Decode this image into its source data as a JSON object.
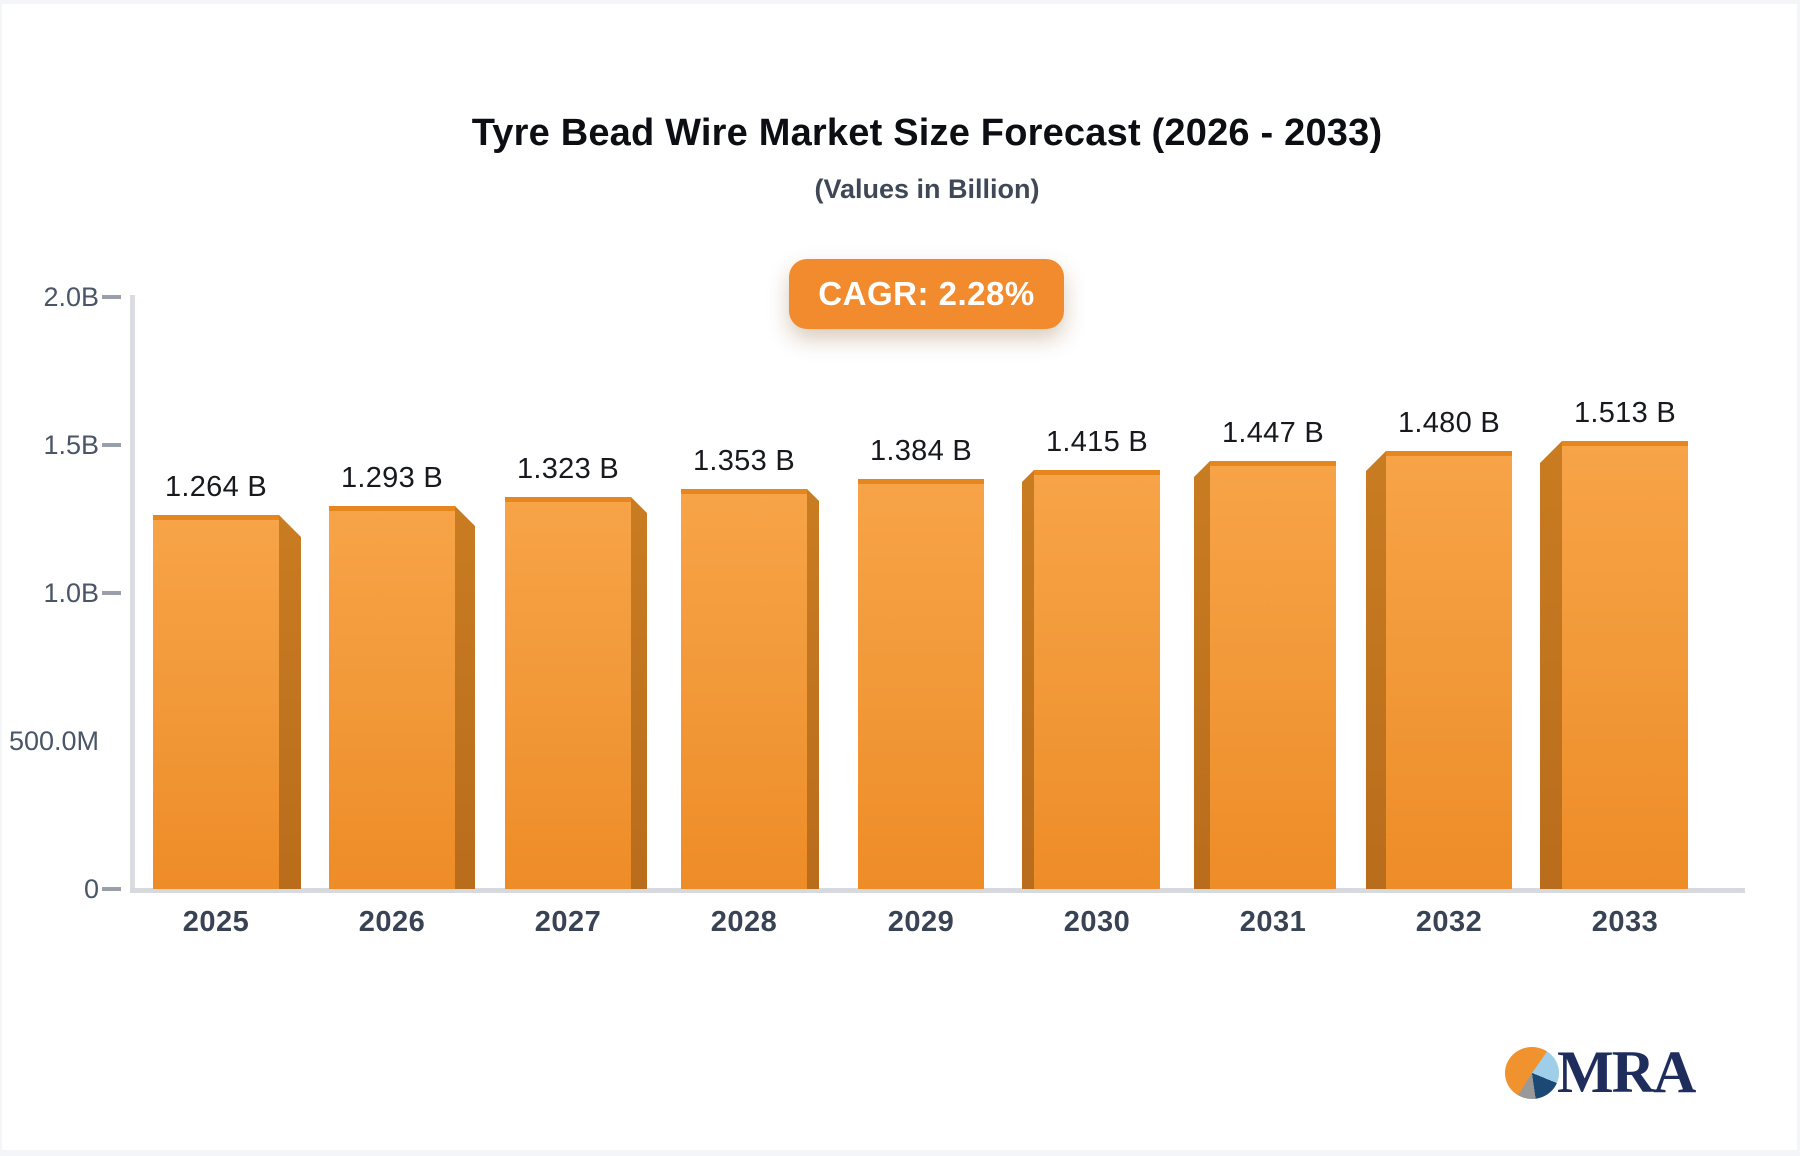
{
  "chart_data": {
    "type": "bar",
    "title": "Tyre Bead Wire Market Size Forecast (2026 - 2033)",
    "subtitle": "(Values in Billion)",
    "cagr_label": "CAGR: 2.28%",
    "categories": [
      "2025",
      "2026",
      "2027",
      "2028",
      "2029",
      "2030",
      "2031",
      "2032",
      "2033"
    ],
    "values": [
      1.264,
      1.293,
      1.323,
      1.353,
      1.384,
      1.415,
      1.447,
      1.48,
      1.513
    ],
    "value_labels": [
      "1.264 B",
      "1.293 B",
      "1.323 B",
      "1.353 B",
      "1.384 B",
      "1.415 B",
      "1.447 B",
      "1.480 B",
      "1.513 B"
    ],
    "xlabel": "",
    "ylabel": "",
    "ylim": [
      0,
      2.0
    ],
    "y_axis_ticks": [
      {
        "label": "2.0B",
        "value": 2.0,
        "dash": true
      },
      {
        "label": "1.5B",
        "value": 1.5,
        "dash": true
      },
      {
        "label": "1.0B",
        "value": 1.0,
        "dash": true
      },
      {
        "label": "500.0M",
        "value": 0.5,
        "dash": false
      },
      {
        "label": "0",
        "value": 0.0,
        "dash": true
      }
    ],
    "grid": false,
    "legend": "none",
    "bar_style": "3d-extruded"
  },
  "colors": {
    "badge_bg": "#f28a2e",
    "bar_face_top": "#f7a347",
    "bar_face_bottom": "#ee8c28",
    "bar_top_edge": "#e5861f",
    "bar_side_dark": "#c0721d",
    "axis_line": "#d9dce1",
    "tick_dash": "#9aa0aa",
    "y_label_color": "#4a5568",
    "x_label_color": "#3a4354",
    "value_label_color": "#17191e",
    "title_color": "#0c0e13",
    "subtitle_color": "#3e4857",
    "logo_navy": "#1e2d5c",
    "logo_orange": "#f0922d",
    "logo_lightblue": "#9fcfe8",
    "logo_gray": "#999999"
  },
  "logo": {
    "text": "MRA"
  }
}
